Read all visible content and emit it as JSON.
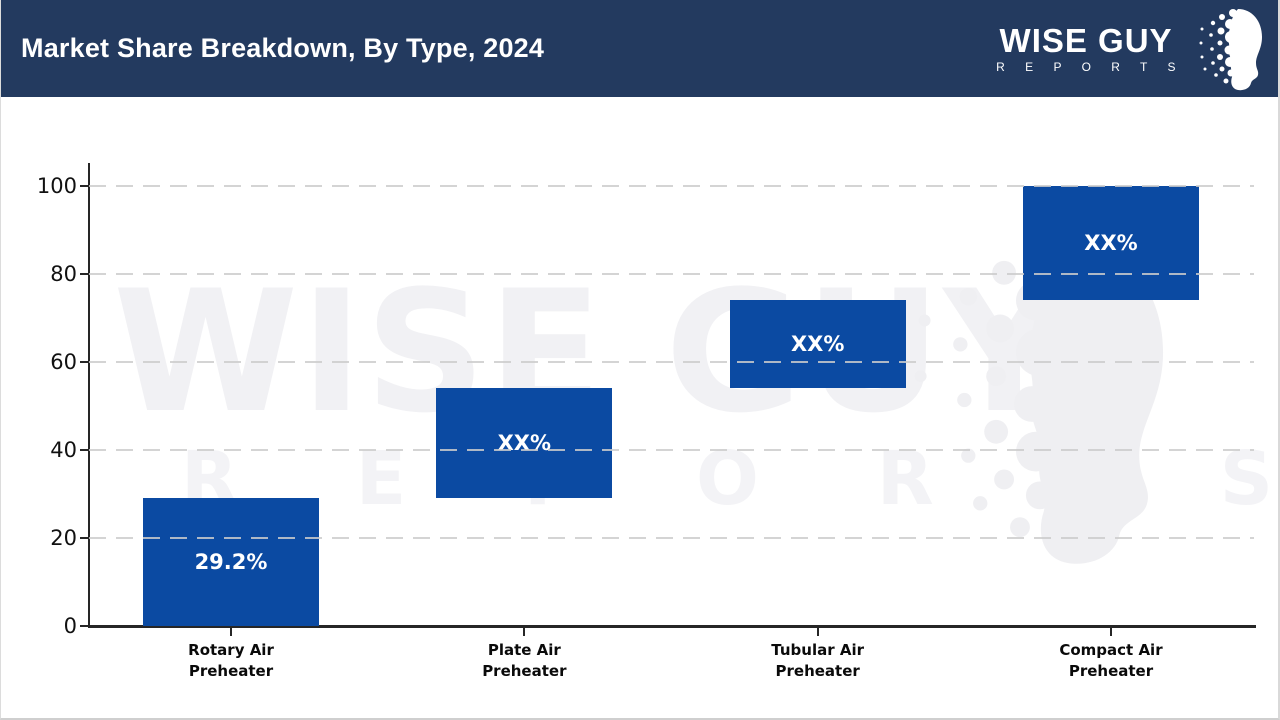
{
  "header": {
    "title": "Market Share Breakdown, By Type, 2024",
    "bg_color": "#233A5F",
    "logo": {
      "line1": "WISE GUY",
      "line2": "R E P O R T S"
    }
  },
  "watermark": {
    "line1": "WISE GUY",
    "line2": "R E P O R T S"
  },
  "chart_data": {
    "type": "bar",
    "subtype": "waterfall",
    "title": "Market Share Breakdown, By Type, 2024",
    "categories": [
      [
        "Rotary Air",
        "Preheater"
      ],
      [
        "Plate Air",
        "Preheater"
      ],
      [
        "Tubular Air",
        "Preheater"
      ],
      [
        "Compact Air",
        "Preheater"
      ]
    ],
    "segments": [
      {
        "start": 0,
        "end": 29.2,
        "label": "29.2%"
      },
      {
        "start": 29.2,
        "end": 54,
        "label": "XX%"
      },
      {
        "start": 54,
        "end": 74,
        "label": "XX%"
      },
      {
        "start": 74,
        "end": 100,
        "label": "XX%"
      }
    ],
    "yticks": [
      0,
      20,
      40,
      60,
      80,
      100
    ],
    "ylim": [
      0,
      100
    ],
    "bar_color": "#0B4AA2",
    "grid": true,
    "grid_style": "dashed",
    "legend": "none"
  }
}
